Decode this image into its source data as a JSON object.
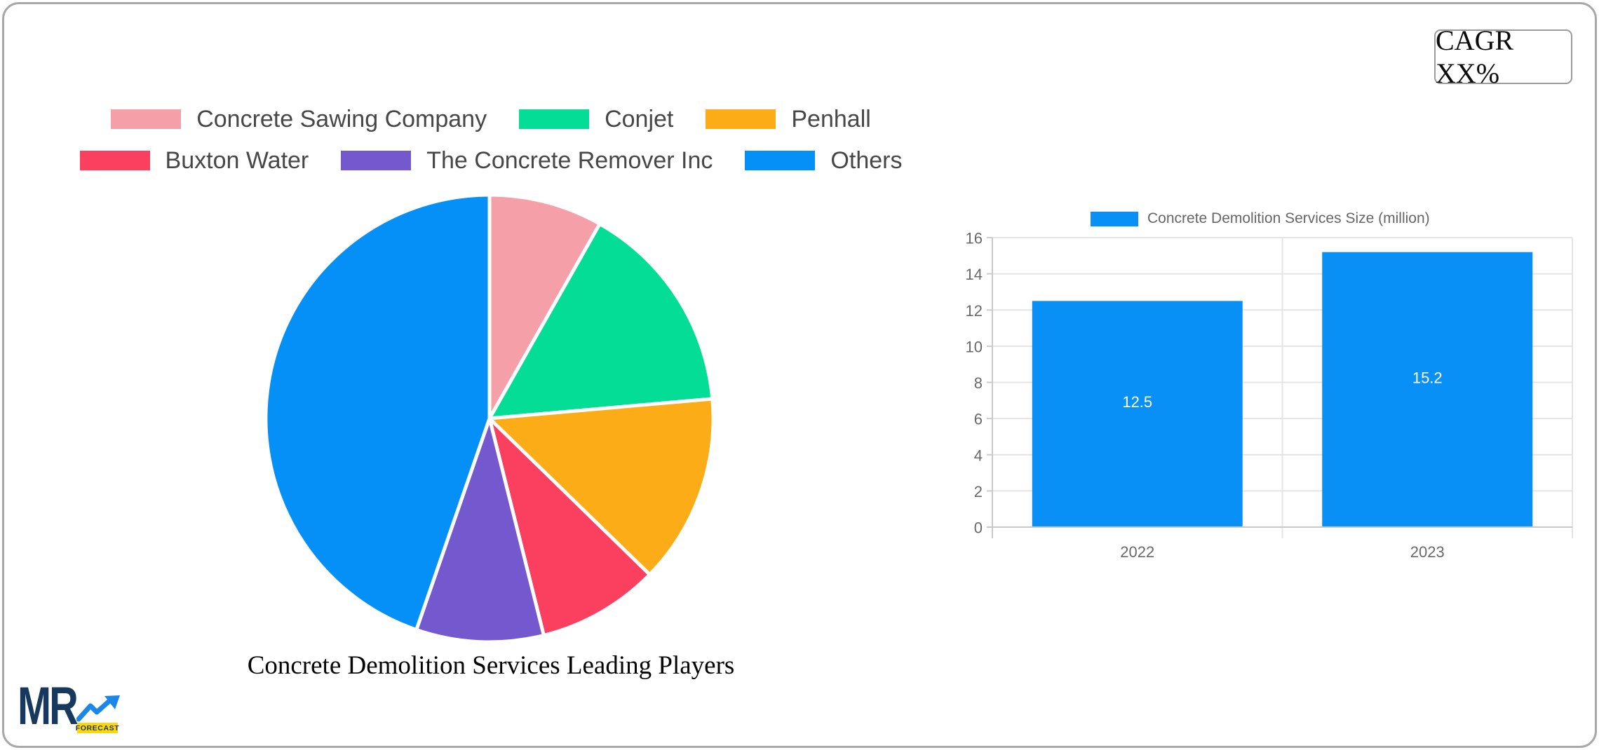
{
  "cagr": {
    "label": "CAGR XX%"
  },
  "logo": {
    "mr": "MR",
    "forecast": "FORECAST"
  },
  "chart_data": [
    {
      "type": "pie",
      "title": "Concrete Demolition Services Leading Players",
      "legend_position": "top",
      "start_angle_deg": 0,
      "direction": "clockwise",
      "slices": [
        {
          "label": "Concrete Sawing Company",
          "value": 8.2,
          "color": "#F5A0A8"
        },
        {
          "label": "Conjet",
          "value": 15.4,
          "color": "#04DD96"
        },
        {
          "label": "Penhall",
          "value": 13.7,
          "color": "#FBAC17"
        },
        {
          "label": "Buxton Water",
          "value": 8.8,
          "color": "#FB3F5E"
        },
        {
          "label": "The Concrete Remover Inc",
          "value": 9.2,
          "color": "#7459CE"
        },
        {
          "label": "Others",
          "value": 44.7,
          "color": "#0590F7"
        }
      ],
      "legend_rows": [
        [
          0,
          1,
          2
        ],
        [
          3,
          4,
          5
        ]
      ]
    },
    {
      "type": "bar",
      "series_label": "Concrete Demolition Services Size (million)",
      "categories": [
        "2022",
        "2023"
      ],
      "values": [
        12.5,
        15.2
      ],
      "value_labels": [
        "12.5",
        "15.2"
      ],
      "bar_color": "#0990F7",
      "ylim": [
        0,
        16
      ],
      "yticks": [
        0,
        2,
        4,
        6,
        8,
        10,
        12,
        14,
        16
      ],
      "grid": true,
      "legend_position": "top"
    }
  ]
}
